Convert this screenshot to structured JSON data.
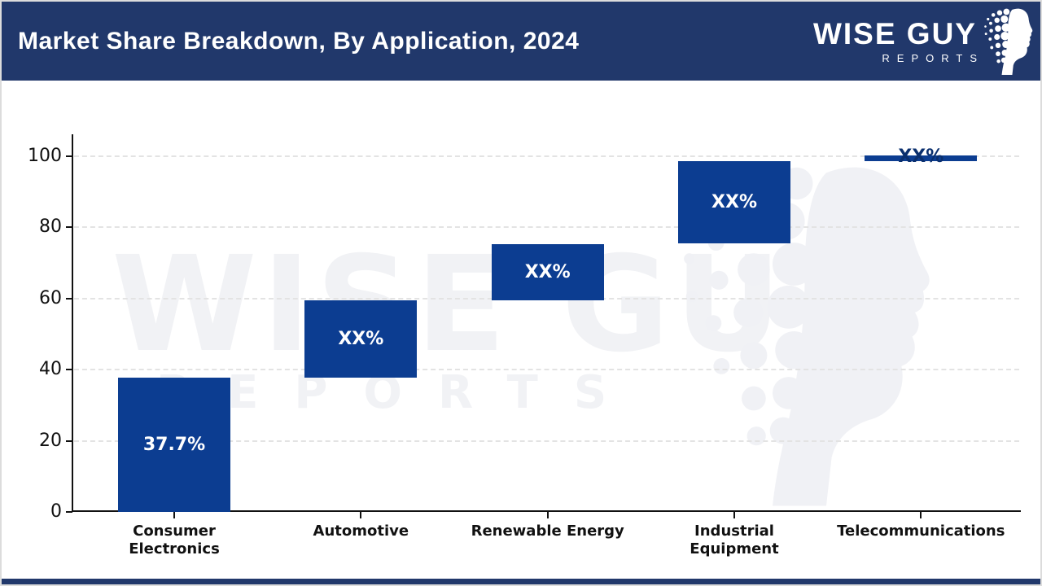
{
  "header": {
    "title": "Market Share Breakdown, By Application, 2024"
  },
  "logo": {
    "line1": "WISE GUY",
    "line2": "REPORTS"
  },
  "watermark": {
    "line1": "WISE GUY",
    "line2": "REPORTS"
  },
  "colors": {
    "header_bg": "#21386b",
    "footer_bg": "#21386b",
    "bar": "#0c3d91",
    "axis": "#111111",
    "grid": "#e3e3e3"
  },
  "chart_data": {
    "type": "waterfall",
    "title": "Market Share Breakdown, By Application, 2024",
    "categories": [
      "Consumer\nElectronics",
      "Automotive",
      "Renewable Energy",
      "Industrial\nEquipment",
      "Telecommunications"
    ],
    "segments": [
      {
        "category": "Consumer Electronics",
        "start": 0,
        "end": 37.7,
        "label": "37.7%"
      },
      {
        "category": "Automotive",
        "start": 37.7,
        "end": 59.4,
        "label": "XX%"
      },
      {
        "category": "Renewable Energy",
        "start": 59.4,
        "end": 75.4,
        "label": "XX%"
      },
      {
        "category": "Industrial Equipment",
        "start": 75.4,
        "end": 98.6,
        "label": "XX%"
      },
      {
        "category": "Telecommunications",
        "start": 98.6,
        "end": 100.3,
        "label": "XX%"
      }
    ],
    "xlabel": "",
    "ylabel": "",
    "ylim": [
      0,
      100
    ],
    "yticks": [
      0,
      20,
      40,
      60,
      80,
      100
    ],
    "grid": true,
    "legend": "none"
  }
}
